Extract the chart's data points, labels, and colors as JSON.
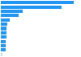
{
  "values": [
    6600000,
    5500000,
    2000000,
    1600000,
    800000,
    600000,
    550000,
    500000,
    480000,
    460000,
    440000,
    420000,
    130000
  ],
  "bar_color": "#2196f3",
  "bar_color_last": "#bbdefb",
  "background_color": "#ffffff",
  "xlim": [
    0,
    7200000
  ],
  "bar_height": 0.75
}
